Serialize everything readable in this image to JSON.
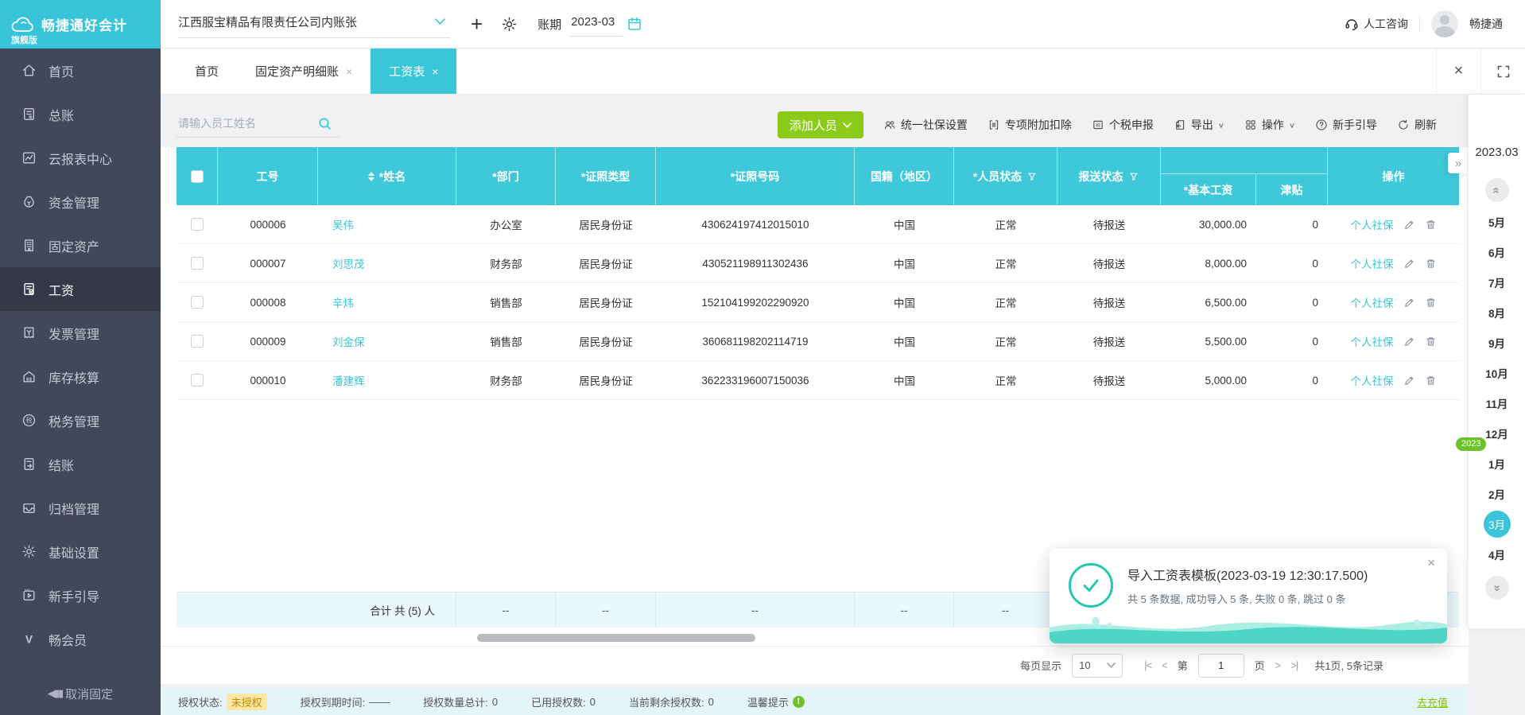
{
  "brand": {
    "title": "畅捷通好会计",
    "edition": "旗舰版"
  },
  "topbar": {
    "company": "江西服宝精品有限责任公司内账张",
    "period_label": "账期",
    "period_value": "2023-03",
    "support_label": "人工咨询",
    "user_name": "畅捷通"
  },
  "tabs": [
    {
      "label": "首页",
      "closable": false,
      "active": false
    },
    {
      "label": "固定资产明细账",
      "closable": true,
      "active": false
    },
    {
      "label": "工资表",
      "closable": true,
      "active": true
    }
  ],
  "sidebar": {
    "items": [
      {
        "label": "首页",
        "icon": "home-icon",
        "active": false
      },
      {
        "label": "总账",
        "icon": "ledger-icon",
        "active": false
      },
      {
        "label": "云报表中心",
        "icon": "cloud-report-icon",
        "active": false
      },
      {
        "label": "资金管理",
        "icon": "funds-icon",
        "active": false
      },
      {
        "label": "固定资产",
        "icon": "fixed-assets-icon",
        "active": false
      },
      {
        "label": "工资",
        "icon": "salary-icon",
        "active": true
      },
      {
        "label": "发票管理",
        "icon": "invoice-icon",
        "active": false
      },
      {
        "label": "库存核算",
        "icon": "inventory-icon",
        "active": false
      },
      {
        "label": "税务管理",
        "icon": "tax-icon",
        "active": false
      },
      {
        "label": "结账",
        "icon": "closing-icon",
        "active": false
      },
      {
        "label": "归档管理",
        "icon": "archive-icon",
        "active": false
      },
      {
        "label": "基础设置",
        "icon": "settings-icon",
        "active": false
      },
      {
        "label": "新手引导",
        "icon": "guide-icon",
        "active": false
      },
      {
        "label": "畅会员",
        "icon": "member-icon",
        "active": false
      }
    ],
    "unpin_label": "取消固定"
  },
  "toolbar": {
    "search_placeholder": "请输入员工姓名",
    "add_button": "添加人员",
    "actions": [
      {
        "label": "统一社保设置",
        "icon": "social-security-icon",
        "dropdown": false
      },
      {
        "label": "专项附加扣除",
        "icon": "special-deduction-icon",
        "dropdown": false
      },
      {
        "label": "个税申报",
        "icon": "tax-declare-icon",
        "dropdown": false
      },
      {
        "label": "导出",
        "icon": "export-icon",
        "dropdown": true
      },
      {
        "label": "操作",
        "icon": "operations-icon",
        "dropdown": true
      },
      {
        "label": "新手引导",
        "icon": "question-icon",
        "dropdown": false
      },
      {
        "label": "刷新",
        "icon": "refresh-icon",
        "dropdown": false
      }
    ]
  },
  "table": {
    "columns": [
      "工号",
      "*姓名",
      "*部门",
      "*证照类型",
      "*证照号码",
      "国籍（地区）",
      "*人员状态",
      "报送状态",
      "*基本工资",
      "津贴",
      "操作"
    ],
    "rows": [
      {
        "id": "000006",
        "name": "吴伟",
        "dept": "办公室",
        "cert_type": "居民身份证",
        "cert_no": "430624197412015010",
        "nation": "中国",
        "status": "正常",
        "report_status": "待报送",
        "base_salary": "30,000.00",
        "allowance": "0"
      },
      {
        "id": "000007",
        "name": "刘思茂",
        "dept": "财务部",
        "cert_type": "居民身份证",
        "cert_no": "430521198911302436",
        "nation": "中国",
        "status": "正常",
        "report_status": "待报送",
        "base_salary": "8,000.00",
        "allowance": "0"
      },
      {
        "id": "000008",
        "name": "辛炜",
        "dept": "销售部",
        "cert_type": "居民身份证",
        "cert_no": "152104199202290920",
        "nation": "中国",
        "status": "正常",
        "report_status": "待报送",
        "base_salary": "6,500.00",
        "allowance": "0"
      },
      {
        "id": "000009",
        "name": "刘金保",
        "dept": "销售部",
        "cert_type": "居民身份证",
        "cert_no": "360681198202114719",
        "nation": "中国",
        "status": "正常",
        "report_status": "待报送",
        "base_salary": "5,500.00",
        "allowance": "0"
      },
      {
        "id": "000010",
        "name": "潘建辉",
        "dept": "财务部",
        "cert_type": "居民身份证",
        "cert_no": "362233196007150036",
        "nation": "中国",
        "status": "正常",
        "report_status": "待报送",
        "base_salary": "5,000.00",
        "allowance": "0"
      }
    ],
    "action_link": "个人社保",
    "summary_label": "合计 共 (5) 人",
    "summary_dash": "--"
  },
  "pagination": {
    "per_page_label": "每页显示",
    "per_page": "10",
    "page_prefix": "第",
    "page": "1",
    "page_suffix": "页",
    "total": "共1页, 5条记录"
  },
  "footer": {
    "auth_status_label": "授权状态:",
    "auth_status": "未授权",
    "expire_label": "授权到期时间:",
    "expire_value": "——",
    "total_label": "授权数量总计:",
    "total_value": "0",
    "used_label": "已用授权数:",
    "used_value": "0",
    "remain_label": "当前剩余授权数:",
    "remain_value": "0",
    "tip_label": "温馨提示",
    "recharge": "去充值"
  },
  "calendar": {
    "current": "2023.03",
    "year_badge": "2023",
    "months": [
      "5月",
      "6月",
      "7月",
      "8月",
      "9月",
      "10月",
      "11月",
      "12月",
      "1月",
      "2月",
      "3月",
      "4月"
    ],
    "active_month": "3月"
  },
  "toast": {
    "title": "导入工资表模板(2023-03-19 12:30:17.500)",
    "detail": "共 5 条数据, 成功导入 5 条, 失败 0 条, 跳过 0 条"
  },
  "colors": {
    "brand": "#3bc5d8",
    "table_header": "#3fc8da",
    "green_button": "#8ccb1a",
    "sidebar_bg": "#424859",
    "footer_bg": "#e4f5fa",
    "toast_check": "#27c5b4",
    "year_badge": "#6cc228"
  }
}
